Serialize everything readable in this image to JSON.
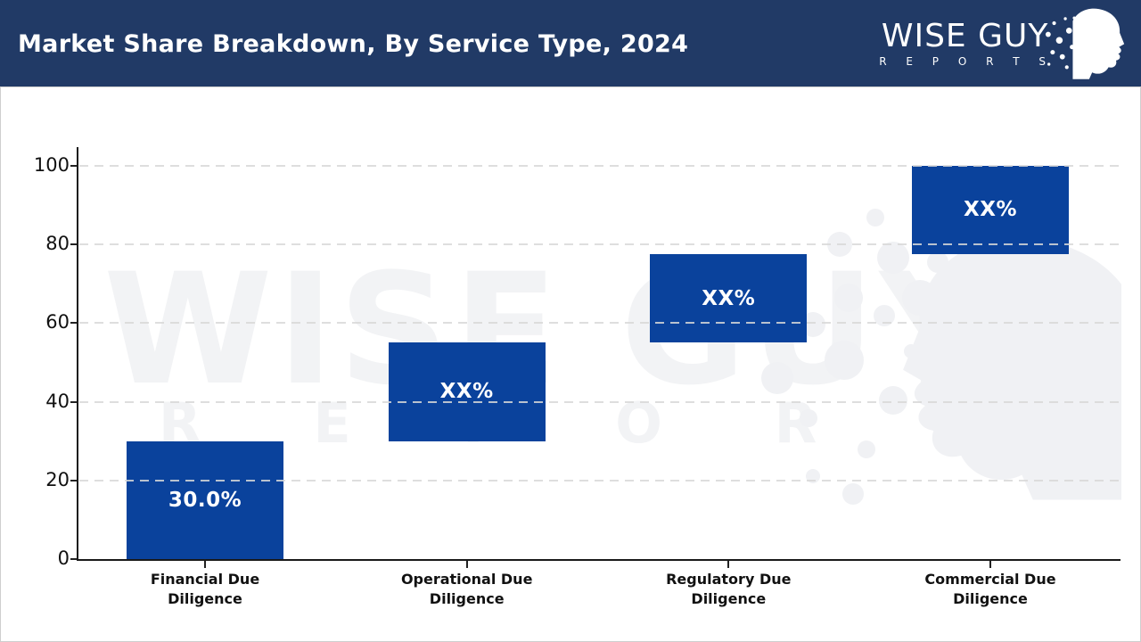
{
  "header": {
    "title": "Market Share Breakdown, By Service Type, 2024",
    "brand": {
      "name": "WISE GUY",
      "subtitle": "R E P O R T S"
    }
  },
  "watermark": {
    "line1": "WISE GUY",
    "line2": "R E P O R T S"
  },
  "chart_data": {
    "type": "bar",
    "subtype": "waterfall",
    "title": "Market Share Breakdown, By Service Type, 2024",
    "categories": [
      "Financial Due\nDiligence",
      "Operational Due\nDiligence",
      "Regulatory Due\nDiligence",
      "Commercial Due\nDiligence"
    ],
    "segments": [
      {
        "category": "Financial Due Diligence",
        "start": 0,
        "end": 30,
        "label": "30.0%"
      },
      {
        "category": "Operational Due Diligence",
        "start": 30,
        "end": 55,
        "label": "XX%"
      },
      {
        "category": "Regulatory Due Diligence",
        "start": 55,
        "end": 77.5,
        "label": "XX%"
      },
      {
        "category": "Commercial Due Diligence",
        "start": 77.5,
        "end": 100,
        "label": "XX%"
      }
    ],
    "xlabel": "",
    "ylabel": "",
    "ylim": [
      0,
      100
    ],
    "yticks": [
      0,
      20,
      40,
      60,
      80,
      100
    ],
    "grid": "dashed horizontal, drawn over bars",
    "legend": "none",
    "colors": {
      "bar": "#0a429c",
      "header_bg": "#213a66",
      "gridline": "#d8d8d8",
      "bar_label_text": "#ffffff",
      "axis": "#1a1a1a",
      "watermark": "#f2f3f5"
    }
  }
}
